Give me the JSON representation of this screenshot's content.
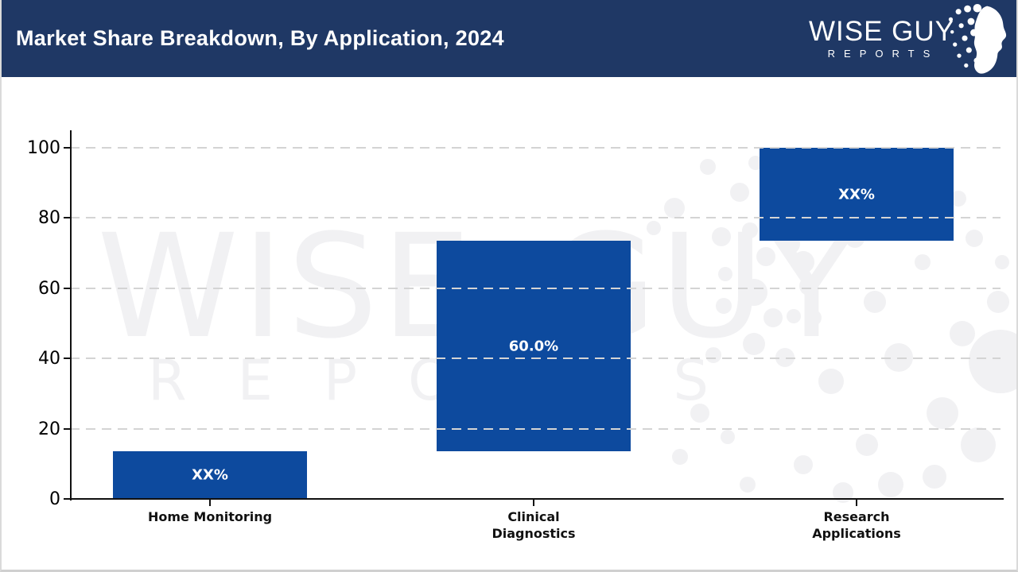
{
  "header": {
    "title": "Market Share Breakdown, By Application, 2024",
    "logo": {
      "brand": "WISE GUY",
      "subtitle": "REPORTS"
    },
    "bg_color": "#1f3865"
  },
  "watermark": {
    "line1": "WISE GUY",
    "line2": "REPORTS",
    "color": "#f1f1f3"
  },
  "chart_data": {
    "type": "bar",
    "subtype": "waterfall",
    "title": "Market Share Breakdown, By Application, 2024",
    "categories": [
      "Home Monitoring",
      "Clinical Diagnostics",
      "Research Applications"
    ],
    "category_label_lines": [
      [
        "Home Monitoring"
      ],
      [
        "Clinical",
        "Diagnostics"
      ],
      [
        "Research",
        "Applications"
      ]
    ],
    "segments": [
      {
        "category": "Home Monitoring",
        "start": 0,
        "end": 13.5,
        "label": "XX%"
      },
      {
        "category": "Clinical Diagnostics",
        "start": 13.5,
        "end": 73.5,
        "label": "60.0%"
      },
      {
        "category": "Research Applications",
        "start": 73.5,
        "end": 100,
        "label": "XX%"
      }
    ],
    "y_ticks": [
      0,
      20,
      40,
      60,
      80,
      100
    ],
    "ylim": [
      0,
      105
    ],
    "xlabel": "",
    "ylabel": "",
    "grid": "horizontal-dashed",
    "legend": "none",
    "bar_color": "#0d4a9e",
    "bar_label_color": "#ffffff",
    "grid_color": "#d4d4d4",
    "axis_color": "#111111"
  }
}
